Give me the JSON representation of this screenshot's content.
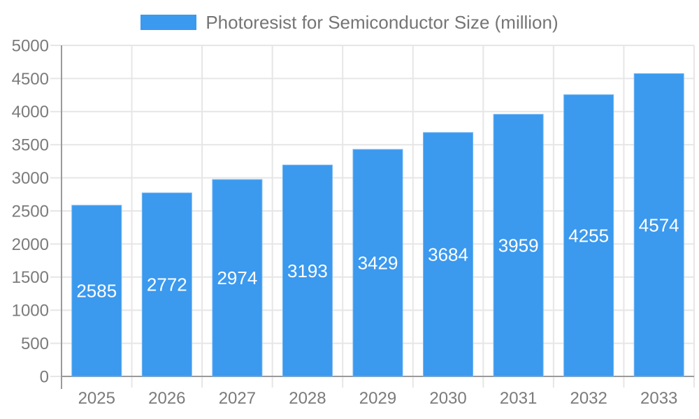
{
  "chart_data": {
    "type": "bar",
    "title": "Photoresist for Semiconductor Size (million)",
    "categories": [
      "2025",
      "2026",
      "2027",
      "2028",
      "2029",
      "2030",
      "2031",
      "2032",
      "2033"
    ],
    "values": [
      2585,
      2772,
      2974,
      3193,
      3429,
      3684,
      3959,
      4255,
      4574
    ],
    "xlabel": "",
    "ylabel": "",
    "ylim": [
      0,
      5000
    ],
    "ytick_step": 500,
    "grid": true,
    "legend_position": "top",
    "value_labels": "inside-center",
    "colors": {
      "bar": "#3B99EE",
      "bar_edge": "#74B7F3",
      "value_text": "#FFFFFF",
      "title_text": "#757575",
      "axis_text": "#7B7B7B",
      "grid_line": "#E6E6E6",
      "axis_line": "#9A9A9A",
      "background": "#FFFFFF"
    }
  }
}
